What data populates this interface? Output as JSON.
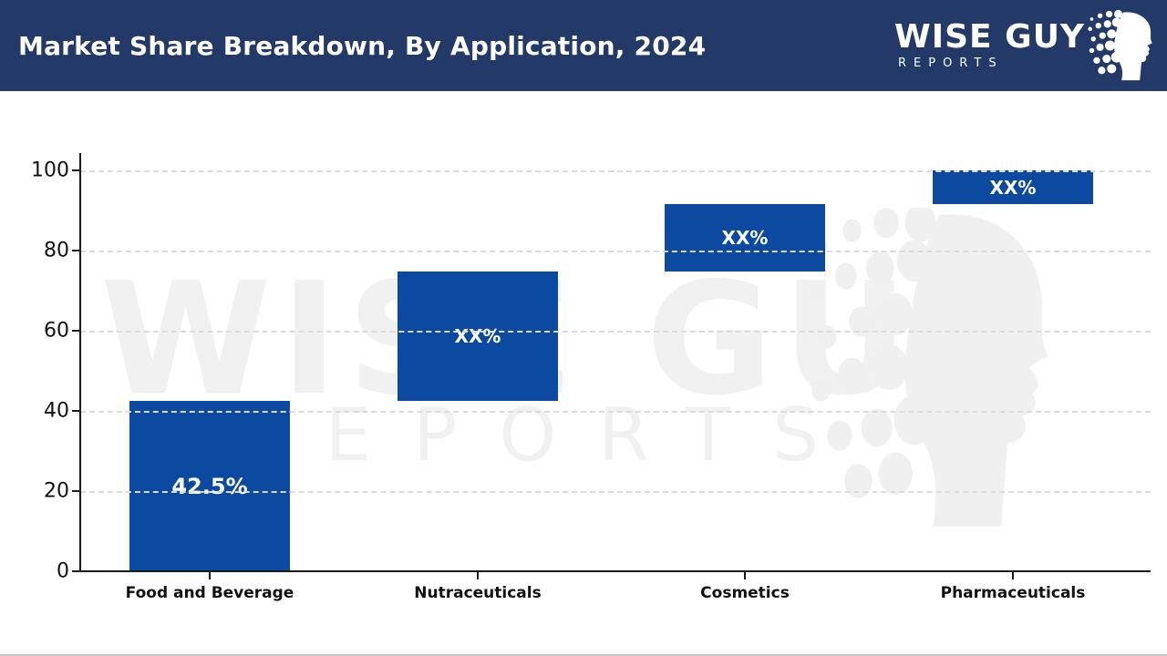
{
  "header": {
    "title": "Market Share Breakdown, By Application, 2024",
    "logo": {
      "line1": "WISE GUY",
      "line2": "REPORTS"
    }
  },
  "watermark": {
    "line1": "WISE GUY",
    "line2": "REPORTS"
  },
  "colors": {
    "header_bg": "#233a69",
    "bar": "#0b4aa0",
    "bar_label": "#ffffff",
    "gridline": "#dcdcdc",
    "axis": "#1a1a1a",
    "watermark": "#f1f1f1"
  },
  "chart_data": {
    "type": "bar",
    "subtype": "waterfall",
    "title": "Market Share Breakdown, By Application, 2024",
    "categories": [
      "Food and Beverage",
      "Nutraceuticals",
      "Cosmetics",
      "Pharmaceuticals"
    ],
    "segments": [
      {
        "label": "42.5%",
        "start": 0,
        "end": 42.5,
        "value_estimated": 42.5
      },
      {
        "label": "XX%",
        "start": 42.5,
        "end": 74.7,
        "value_estimated": 32.2
      },
      {
        "label": "XX%",
        "start": 74.7,
        "end": 91.5,
        "value_estimated": 16.8
      },
      {
        "label": "XX%",
        "start": 91.5,
        "end": 100,
        "value_estimated": 8.5
      }
    ],
    "y_ticks": [
      0,
      20,
      40,
      60,
      80,
      100
    ],
    "ylim": [
      0,
      100
    ],
    "xlabel": "",
    "ylabel": "",
    "grid": "dashed-horizontal",
    "legend": "none",
    "bar_color": "#0b4aa0",
    "label_color": "#ffffff"
  }
}
